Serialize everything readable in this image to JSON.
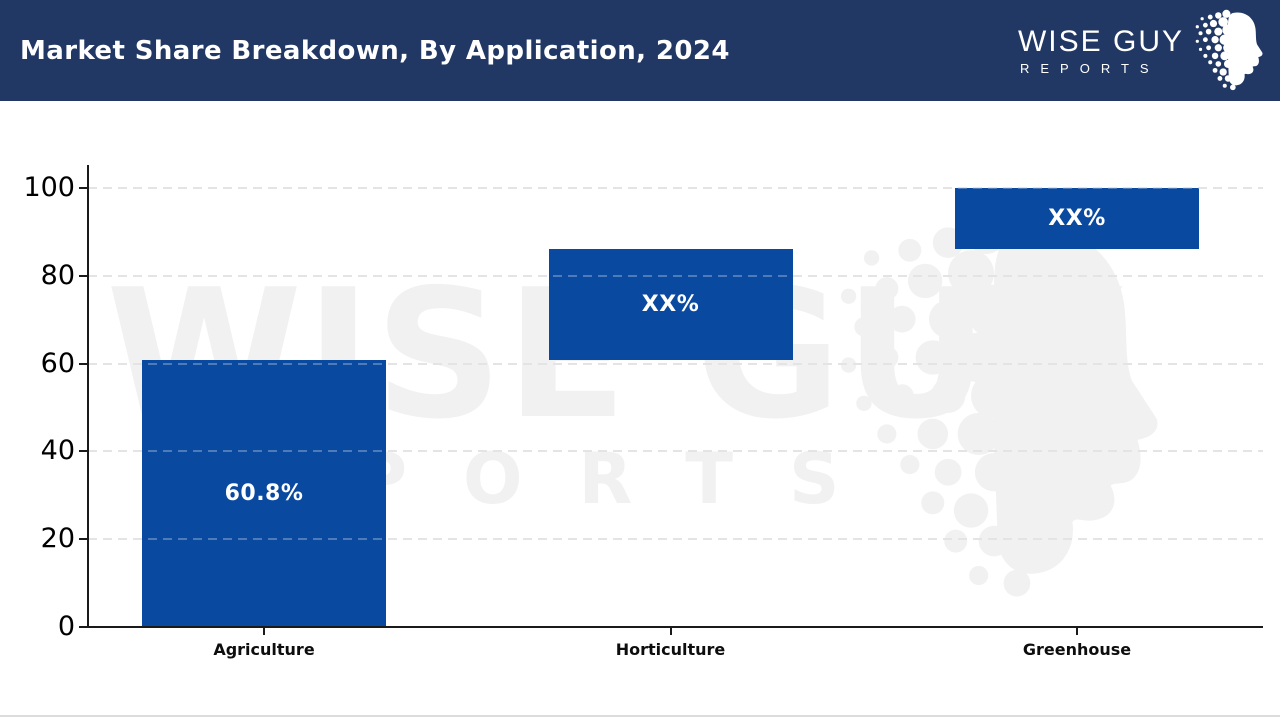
{
  "header": {
    "bg_color": "#213764",
    "title": "Market Share Breakdown, By Application, 2024",
    "logo": {
      "line1": "WISE GUY",
      "line2": "REPORTS"
    }
  },
  "watermark": {
    "line1": "WISE GUY",
    "line2": "REPORTS"
  },
  "chart_data": {
    "type": "bar",
    "subtype": "stacked-waterfall",
    "title": "Market Share Breakdown, By Application, 2024",
    "categories": [
      "Agriculture",
      "Horticulture",
      "Greenhouse"
    ],
    "segments": [
      {
        "category": "Agriculture",
        "start": 0,
        "end": 60.8,
        "label": "60.8%"
      },
      {
        "category": "Horticulture",
        "start": 60.8,
        "end": 86,
        "label": "XX%"
      },
      {
        "category": "Greenhouse",
        "start": 86,
        "end": 100,
        "label": "XX%"
      }
    ],
    "xlabel": "",
    "ylabel": "",
    "ylim": [
      0,
      100
    ],
    "yticks": [
      0,
      20,
      40,
      60,
      80,
      100
    ],
    "grid": "horizontal-dashed",
    "legend": "none",
    "bar_color": "#0a49a0",
    "bar_label_color": "#ffffff"
  }
}
